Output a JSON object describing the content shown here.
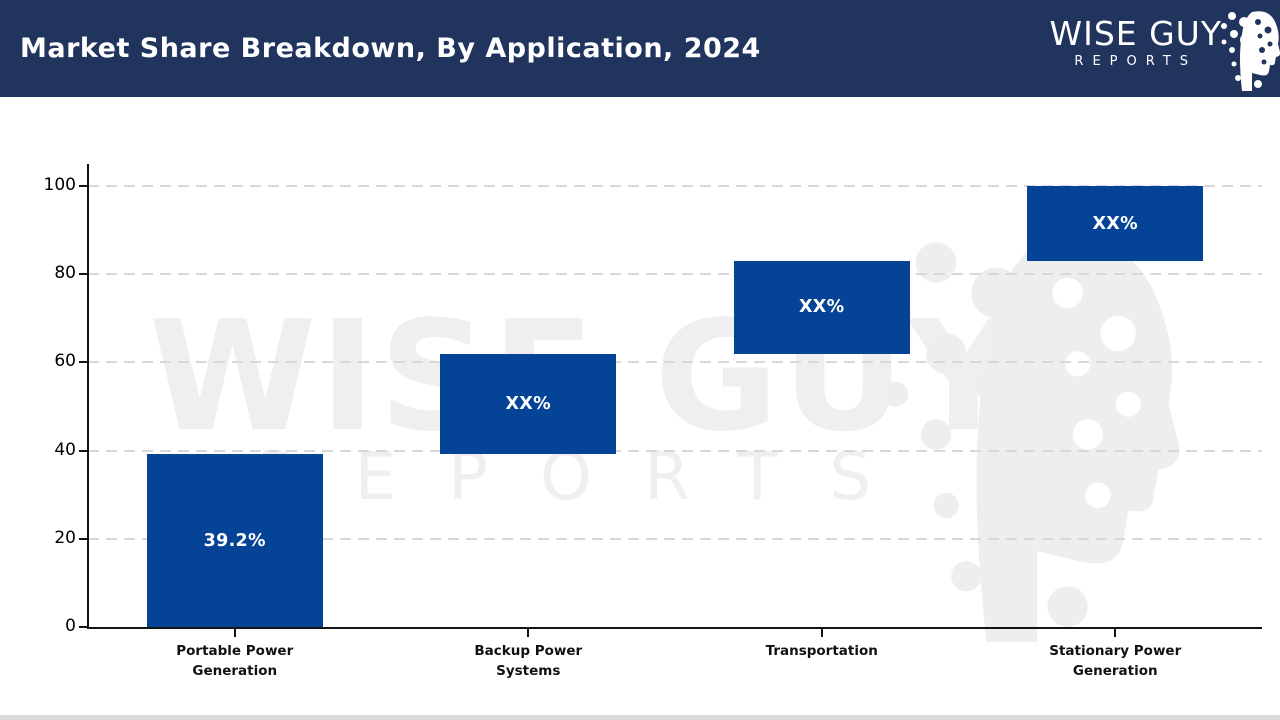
{
  "header": {
    "title": "Market Share Breakdown, By Application, 2024",
    "bg_color": "#20345e",
    "logo": {
      "wordmark": "WISE GUY",
      "subtext": "REPORTS"
    }
  },
  "watermark": {
    "line1": "WISE GUY",
    "line2": "REPORTS"
  },
  "footer": {
    "strip_color": "#d9d9d9"
  },
  "chart_data": {
    "type": "bar",
    "subtype": "waterfall-floating-segments",
    "title": "Market Share Breakdown, By Application, 2024",
    "categories": [
      "Portable Power Generation",
      "Backup Power Systems",
      "Transportation",
      "Stationary Power Generation"
    ],
    "category_lines": [
      [
        "Portable Power",
        "Generation"
      ],
      [
        "Backup Power",
        "Systems"
      ],
      [
        "Transportation"
      ],
      [
        "Stationary Power",
        "Generation"
      ]
    ],
    "segments": [
      {
        "start": 0,
        "end": 39.2,
        "label": "39.2%"
      },
      {
        "start": 39.2,
        "end": 62,
        "label": "XX%"
      },
      {
        "start": 62,
        "end": 83,
        "label": "XX%"
      },
      {
        "start": 83,
        "end": 100,
        "label": "XX%"
      }
    ],
    "yticks": [
      0,
      20,
      40,
      60,
      80,
      100
    ],
    "ylim": [
      0,
      105
    ],
    "xlabel": "",
    "ylabel": "",
    "legend": "none",
    "grid": "horizontal-dashed",
    "bar_color": "#054396",
    "bar_label_color": "#ffffff",
    "axis_color": "#141414",
    "gridline_color": "#d8d8d8"
  }
}
